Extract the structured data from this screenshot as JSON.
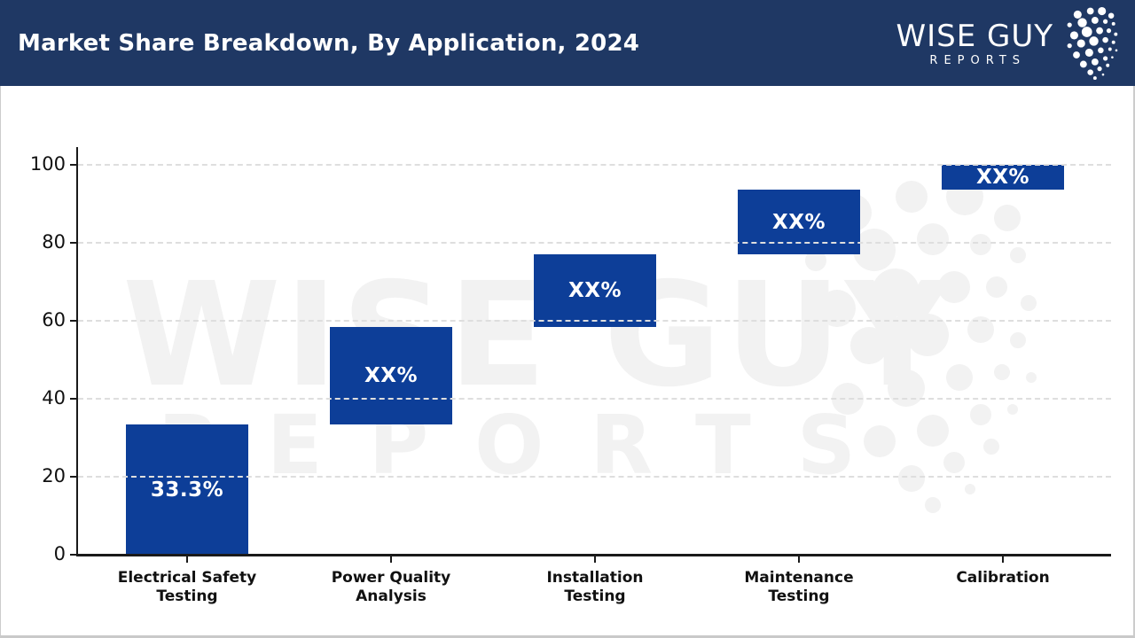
{
  "header": {
    "title": "Market Share Breakdown, By Application, 2024",
    "bg_color": "#1f3864"
  },
  "logo": {
    "line1": "WISE GUY",
    "line2": "REPORTS"
  },
  "watermark": {
    "line1": "WISE GUY",
    "line2": "REPORTS"
  },
  "chart_data": {
    "type": "bar",
    "variant": "waterfall-stacked-percent",
    "title": "Market Share Breakdown, By Application, 2024",
    "categories": [
      "Electrical Safety Testing",
      "Power Quality Analysis",
      "Installation Testing",
      "Maintenance Testing",
      "Calibration"
    ],
    "category_lines": [
      [
        "Electrical Safety",
        "Testing"
      ],
      [
        "Power Quality",
        "Analysis"
      ],
      [
        "Installation",
        "Testing"
      ],
      [
        "Maintenance",
        "Testing"
      ],
      [
        "Calibration"
      ]
    ],
    "segments": [
      {
        "category": "Electrical Safety Testing",
        "label": "33.3%",
        "start": 0,
        "end": 33.3
      },
      {
        "category": "Power Quality Analysis",
        "label": "XX%",
        "start": 33.3,
        "end": 58.3
      },
      {
        "category": "Installation Testing",
        "label": "XX%",
        "start": 58.3,
        "end": 77.0
      },
      {
        "category": "Maintenance Testing",
        "label": "XX%",
        "start": 77.0,
        "end": 93.6
      },
      {
        "category": "Calibration",
        "label": "XX%",
        "start": 93.6,
        "end": 100
      }
    ],
    "ylim": [
      0,
      100
    ],
    "yticks": [
      0,
      20,
      40,
      60,
      80,
      100
    ],
    "xlabel": "",
    "ylabel": "",
    "grid": "horizontal-dashed",
    "legend": false,
    "bar_color": "#0d3e98",
    "bar_label_color": "#ffffff",
    "axis_color": "#1a1a1a",
    "grid_color": "#dedede",
    "watermark_color": "#f2f2f2"
  }
}
